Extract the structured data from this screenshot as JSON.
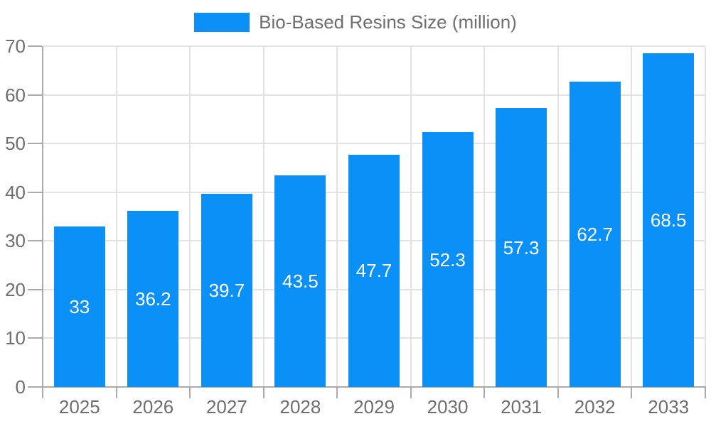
{
  "legend": {
    "label": "Bio-Based Resins Size (million)"
  },
  "colors": {
    "bar": "#0a90f6",
    "grid": "#e3e3e3",
    "axis": "#aaaaaa",
    "tick_label": "#6e6e6e",
    "value_label": "#ffffff",
    "background": "#ffffff"
  },
  "chart_data": {
    "type": "bar",
    "title": "",
    "xlabel": "",
    "ylabel": "",
    "legend_entries": [
      "Bio-Based Resins Size (million)"
    ],
    "legend_position": "top-center",
    "categories": [
      "2025",
      "2026",
      "2027",
      "2028",
      "2029",
      "2030",
      "2031",
      "2032",
      "2033"
    ],
    "series": [
      {
        "name": "Bio-Based Resins Size (million)",
        "values": [
          33,
          36.2,
          39.7,
          43.5,
          47.7,
          52.3,
          57.3,
          62.7,
          68.5
        ]
      }
    ],
    "value_labels": [
      "33",
      "36.2",
      "39.7",
      "43.5",
      "47.7",
      "52.3",
      "57.3",
      "62.7",
      "68.5"
    ],
    "value_label_position": "center-of-bar",
    "ylim": [
      0,
      70
    ],
    "yticks": [
      0,
      10,
      20,
      30,
      40,
      50,
      60,
      70
    ],
    "grid": "horizontal-and-vertical"
  }
}
